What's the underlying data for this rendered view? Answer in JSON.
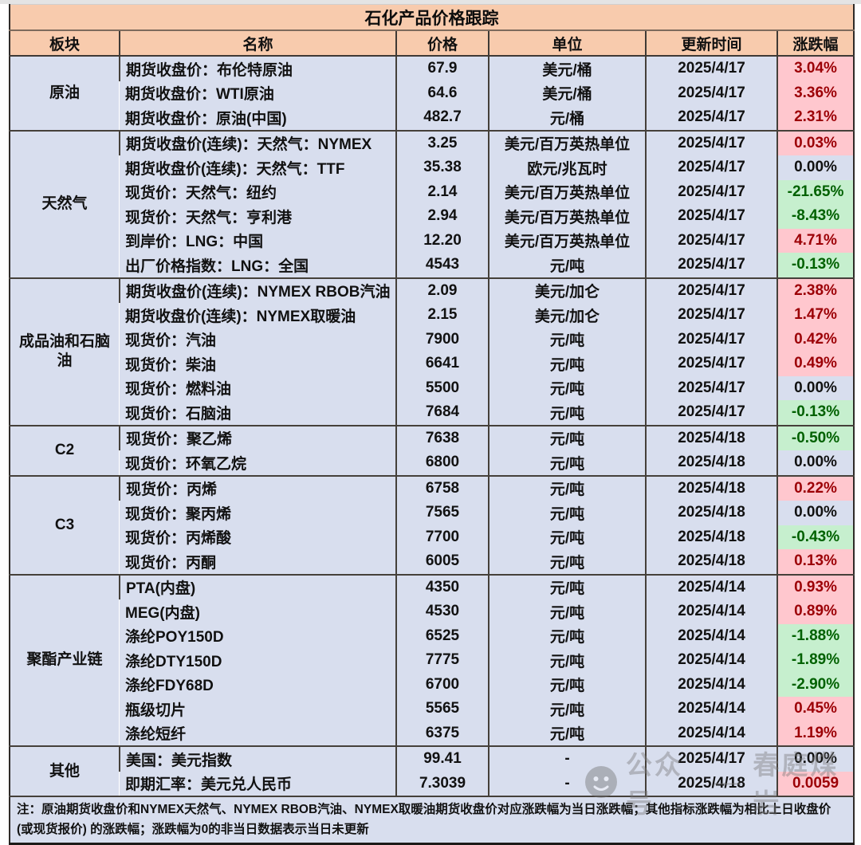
{
  "title": "石化产品价格跟踪",
  "columns": [
    "板块",
    "名称",
    "价格",
    "单位",
    "更新时间",
    "涨跌幅"
  ],
  "table": {
    "groups": [
      {
        "sector": "原油",
        "rows": [
          {
            "name": "期货收盘价：布伦特原油",
            "price": "67.9",
            "unit": "美元/桶",
            "date": "2025/4/17",
            "change": "3.04%",
            "trend": "up"
          },
          {
            "name": "期货收盘价：WTI原油",
            "price": "64.6",
            "unit": "美元/桶",
            "date": "2025/4/17",
            "change": "3.36%",
            "trend": "up"
          },
          {
            "name": "期货收盘价：原油(中国)",
            "price": "482.7",
            "unit": "元/桶",
            "date": "2025/4/17",
            "change": "2.31%",
            "trend": "up"
          }
        ]
      },
      {
        "sector": "天然气",
        "rows": [
          {
            "name": "期货收盘价(连续)：天然气：NYMEX",
            "price": "3.25",
            "unit": "美元/百万英热单位",
            "date": "2025/4/17",
            "change": "0.03%",
            "trend": "up"
          },
          {
            "name": "期货收盘价(连续)：天然气：TTF",
            "price": "35.38",
            "unit": "欧元/兆瓦时",
            "date": "2025/4/17",
            "change": "0.00%",
            "trend": "flat"
          },
          {
            "name": "现货价：天然气：纽约",
            "price": "2.14",
            "unit": "美元/百万英热单位",
            "date": "2025/4/17",
            "change": "-21.65%",
            "trend": "down"
          },
          {
            "name": "现货价：天然气：亨利港",
            "price": "2.94",
            "unit": "美元/百万英热单位",
            "date": "2025/4/17",
            "change": "-8.43%",
            "trend": "down"
          },
          {
            "name": "到岸价：LNG：中国",
            "price": "12.20",
            "unit": "美元/百万英热单位",
            "date": "2025/4/17",
            "change": "4.71%",
            "trend": "up"
          },
          {
            "name": "出厂价格指数：LNG：全国",
            "price": "4543",
            "unit": "元/吨",
            "date": "2025/4/17",
            "change": "-0.13%",
            "trend": "down"
          }
        ]
      },
      {
        "sector": "成品油和石脑油",
        "rows": [
          {
            "name": "期货收盘价(连续)：NYMEX RBOB汽油",
            "price": "2.09",
            "unit": "美元/加仑",
            "date": "2025/4/17",
            "change": "2.38%",
            "trend": "up"
          },
          {
            "name": "期货收盘价(连续)：NYMEX取暖油",
            "price": "2.15",
            "unit": "美元/加仑",
            "date": "2025/4/17",
            "change": "1.47%",
            "trend": "up"
          },
          {
            "name": "现货价：汽油",
            "price": "7900",
            "unit": "元/吨",
            "date": "2025/4/17",
            "change": "0.42%",
            "trend": "up"
          },
          {
            "name": "现货价：柴油",
            "price": "6641",
            "unit": "元/吨",
            "date": "2025/4/17",
            "change": "0.49%",
            "trend": "up"
          },
          {
            "name": "现货价：燃料油",
            "price": "5500",
            "unit": "元/吨",
            "date": "2025/4/17",
            "change": "0.00%",
            "trend": "flat"
          },
          {
            "name": "现货价：石脑油",
            "price": "7684",
            "unit": "元/吨",
            "date": "2025/4/17",
            "change": "-0.13%",
            "trend": "down"
          }
        ]
      },
      {
        "sector": "C2",
        "rows": [
          {
            "name": "现货价：聚乙烯",
            "price": "7638",
            "unit": "元/吨",
            "date": "2025/4/18",
            "change": "-0.50%",
            "trend": "down"
          },
          {
            "name": "现货价：环氧乙烷",
            "price": "6800",
            "unit": "元/吨",
            "date": "2025/4/18",
            "change": "0.00%",
            "trend": "flat"
          }
        ]
      },
      {
        "sector": "C3",
        "rows": [
          {
            "name": "现货价：丙烯",
            "price": "6758",
            "unit": "元/吨",
            "date": "2025/4/18",
            "change": "0.22%",
            "trend": "up"
          },
          {
            "name": "现货价：聚丙烯",
            "price": "7565",
            "unit": "元/吨",
            "date": "2025/4/18",
            "change": "0.00%",
            "trend": "flat"
          },
          {
            "name": "现货价：丙烯酸",
            "price": "7700",
            "unit": "元/吨",
            "date": "2025/4/18",
            "change": "-0.43%",
            "trend": "down"
          },
          {
            "name": "现货价：丙酮",
            "price": "6005",
            "unit": "元/吨",
            "date": "2025/4/18",
            "change": "0.13%",
            "trend": "up"
          }
        ]
      },
      {
        "sector": "聚酯产业链",
        "rows": [
          {
            "name": "PTA(内盘)",
            "price": "4350",
            "unit": "元/吨",
            "date": "2025/4/14",
            "change": "0.93%",
            "trend": "up"
          },
          {
            "name": "MEG(内盘)",
            "price": "4530",
            "unit": "元/吨",
            "date": "2025/4/14",
            "change": "0.89%",
            "trend": "up"
          },
          {
            "name": "涤纶POY150D",
            "price": "6525",
            "unit": "元/吨",
            "date": "2025/4/14",
            "change": "-1.88%",
            "trend": "down"
          },
          {
            "name": "涤纶DTY150D",
            "price": "7775",
            "unit": "元/吨",
            "date": "2025/4/14",
            "change": "-1.89%",
            "trend": "down"
          },
          {
            "name": "涤纶FDY68D",
            "price": "6700",
            "unit": "元/吨",
            "date": "2025/4/14",
            "change": "-2.90%",
            "trend": "down"
          },
          {
            "name": "瓶级切片",
            "price": "5565",
            "unit": "元/吨",
            "date": "2025/4/14",
            "change": "0.45%",
            "trend": "up"
          },
          {
            "name": "涤纶短纤",
            "price": "6375",
            "unit": "元/吨",
            "date": "2025/4/14",
            "change": "1.19%",
            "trend": "up"
          }
        ]
      },
      {
        "sector": "其他",
        "rows": [
          {
            "name": "美国：美元指数",
            "price": "99.41",
            "unit": "-",
            "date": "2025/4/17",
            "change": "0.00%",
            "trend": "flat"
          },
          {
            "name": "即期汇率：美元兑人民币",
            "price": "7.3039",
            "unit": "-",
            "date": "2025/4/18",
            "change": "0.0059",
            "trend": "up"
          }
        ]
      }
    ]
  },
  "footnote": {
    "line1": "注：原油期货收盘价和NYMEX天然气、NYMEX RBOB汽油、NYMEX取暖油期货收盘价对应涨跌幅为当日涨跌幅；其他指标涨跌幅为相比上日收盘价",
    "line2": "(或现货报价) 的涨跌幅；涨跌幅为0的非当日数据表示当日未更新"
  },
  "watermark": {
    "prefix": "公众号",
    "dash": "—",
    "suffix": "春庭煤岩"
  },
  "colors": {
    "header_fill": "#F8CBAD",
    "body_fill": "#D8DEEE",
    "up_fill": "#FFC7CE",
    "up_text": "#9C0006",
    "down_fill": "#C6EFCE",
    "down_text": "#006100",
    "border_dark": "#45403A"
  }
}
